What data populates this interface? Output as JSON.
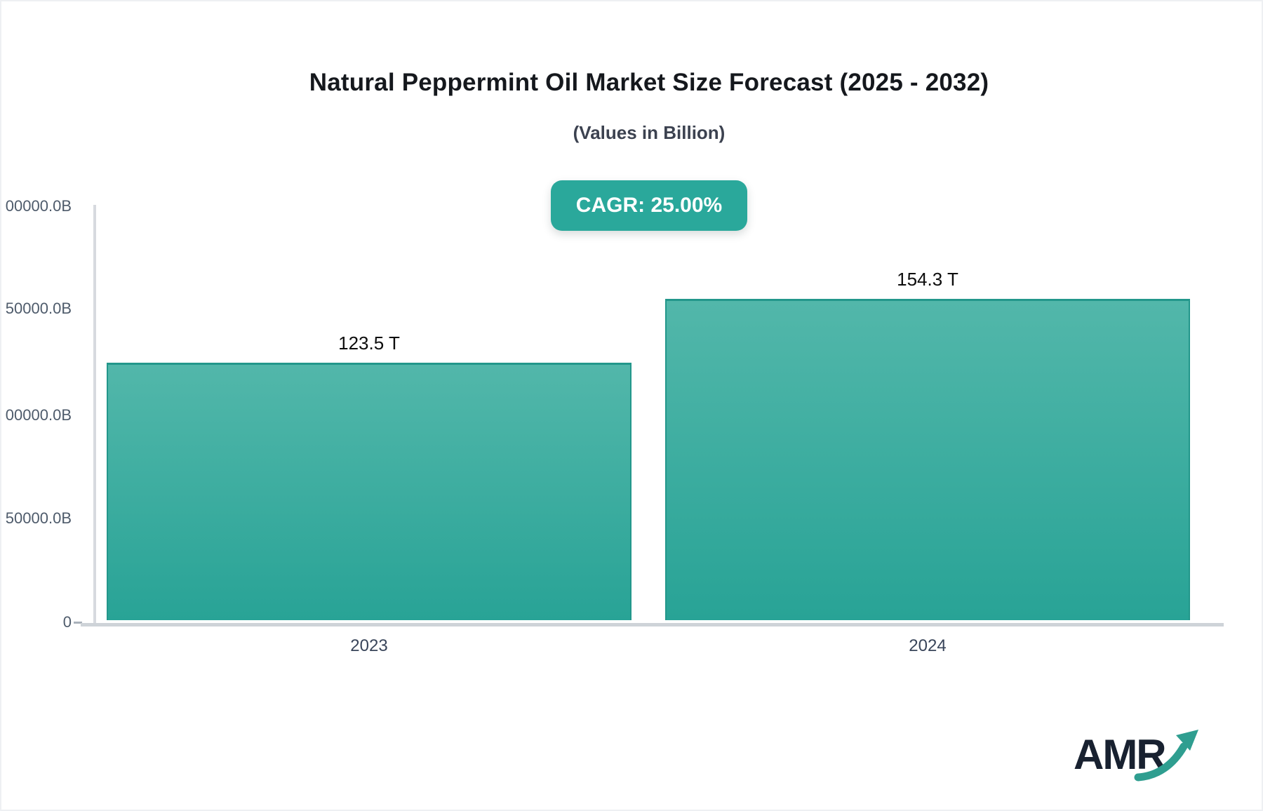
{
  "header": {
    "title": "Natural Peppermint Oil Market Size Forecast (2025 - 2032)",
    "subtitle": "(Values in Billion)",
    "cagr_badge": "CAGR: 25.00%"
  },
  "chart_data": {
    "type": "bar",
    "title": "Natural Peppermint Oil Market Size Forecast (2025 - 2032)",
    "subtitle": "(Values in Billion)",
    "unit": "Billion",
    "categories": [
      "2023",
      "2024"
    ],
    "values": [
      123500,
      154300
    ],
    "value_labels": [
      "123.5 T",
      "154.3 T"
    ],
    "ylim": [
      0,
      200000
    ],
    "ytick_values": [
      200000,
      150000,
      100000,
      50000,
      0
    ],
    "ytick_labels_visible": [
      "00000.0B",
      "50000.0B",
      "00000.0B",
      "50000.0B",
      "0"
    ],
    "grid": false,
    "legend": "none",
    "bar_color_top": "#52b7aa",
    "bar_color_bottom": "#28a396",
    "bar_border_color": "#23978b"
  },
  "footer": {
    "logo_text": "AMR"
  },
  "colors": {
    "accent": "#2aa89b",
    "title_text": "#15181d",
    "axis_line": "#d2d6db",
    "logo_text": "#182130",
    "logo_arrow": "#2f9e90"
  }
}
